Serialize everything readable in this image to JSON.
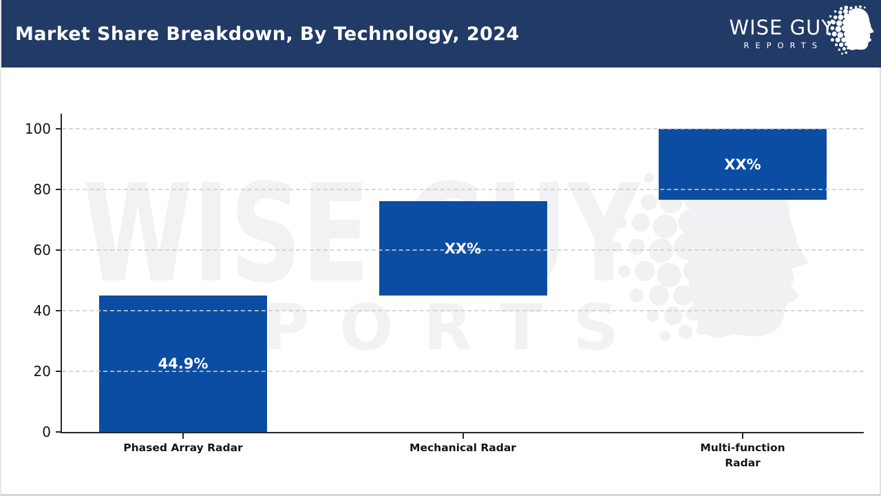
{
  "header": {
    "title": "Market Share Breakdown, By Technology, 2024",
    "logo": {
      "line1": "WISE GUY",
      "line2": "REPORTS"
    }
  },
  "watermark": {
    "line1": "WISE GUY",
    "line2": "REPORTS"
  },
  "chart_data": {
    "type": "bar",
    "variant": "waterfall",
    "title": "Market Share Breakdown, By Technology, 2024",
    "categories": [
      "Phased Array Radar",
      "Mechanical Radar",
      "Multi-function\nRadar"
    ],
    "bars": [
      {
        "category": "Phased Array Radar",
        "start": 0,
        "end": 44.9,
        "label": "44.9%"
      },
      {
        "category": "Mechanical Radar",
        "start": 45.0,
        "end": 76.1,
        "label": "XX%"
      },
      {
        "category": "Multi-function Radar",
        "start": 76.5,
        "end": 100,
        "label": "XX%"
      }
    ],
    "xlabel": "",
    "ylabel": "",
    "ylim": [
      0,
      100
    ],
    "yticks": [
      0,
      20,
      40,
      60,
      80,
      100
    ],
    "grid": "horizontal-dashed",
    "legend": "none",
    "bar_color": "#0b4da2",
    "bar_label_color": "#ffffff",
    "axis_color": "#262626",
    "header_color": "#213a66"
  }
}
